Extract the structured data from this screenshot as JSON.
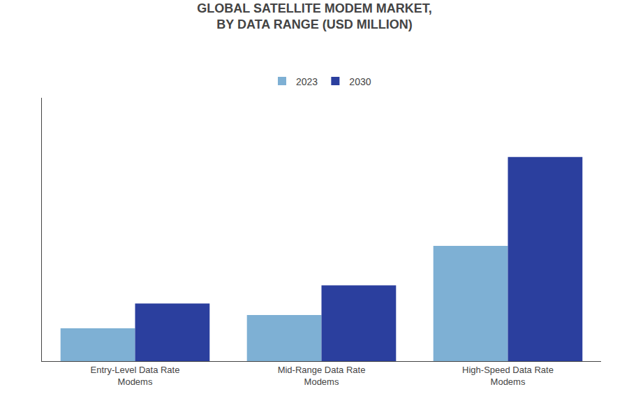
{
  "chart_data": {
    "type": "bar",
    "title": "GLOBAL SATELLITE MODEM MARKET,\nBY DATA RANGE (USD MILLION)",
    "categories": [
      "Entry-Level Data Rate\nModems",
      "Mid-Range Data Rate\nModems",
      "High-Speed Data Rate\nModems"
    ],
    "series": [
      {
        "name": "2023",
        "color": "#7EB0D4",
        "values": [
          1.0,
          1.4,
          3.5
        ]
      },
      {
        "name": "2030",
        "color": "#2B3F9E",
        "values": [
          1.75,
          2.3,
          6.2
        ]
      }
    ],
    "ylim": [
      0,
      8.0
    ],
    "grid": false,
    "legend": "top",
    "tick_labels": "x"
  }
}
